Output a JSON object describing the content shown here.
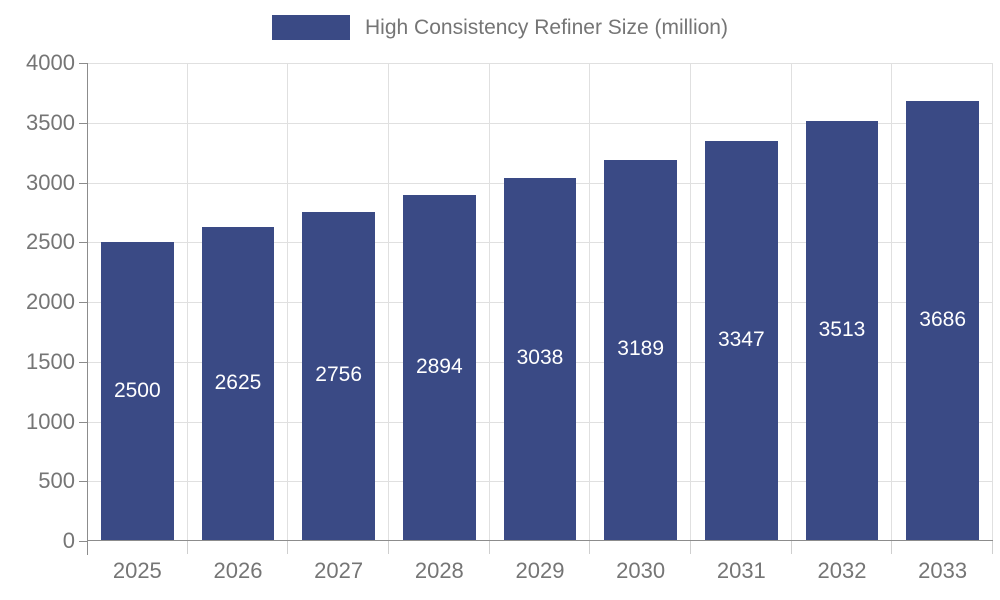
{
  "legend": {
    "label": "High Consistency Refiner Size (million)"
  },
  "chart_data": {
    "type": "bar",
    "title": "High Consistency Refiner Size (million)",
    "categories": [
      "2025",
      "2026",
      "2027",
      "2028",
      "2029",
      "2030",
      "2031",
      "2032",
      "2033"
    ],
    "values": [
      2500,
      2625,
      2756,
      2894,
      3038,
      3189,
      3347,
      3513,
      3686
    ],
    "xlabel": "",
    "ylabel": "",
    "ylim": [
      0,
      4000
    ],
    "ytick_step": 500,
    "yticks": [
      0,
      500,
      1000,
      1500,
      2000,
      2500,
      3000,
      3500,
      4000
    ],
    "grid": true,
    "legend_position": "top-center",
    "bar_label_position": "inside-center"
  },
  "colors": {
    "bar": "#3A4A85",
    "bar_label": "#ffffff",
    "axis_text": "#757575",
    "grid": "#e0e0e0",
    "spine": "#8c8c8c",
    "background": "#ffffff"
  }
}
